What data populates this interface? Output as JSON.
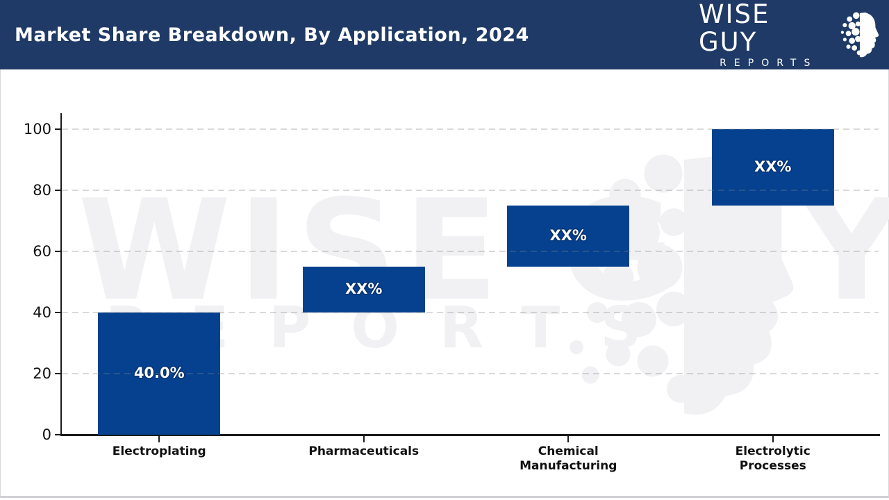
{
  "header": {
    "title": "Market Share Breakdown, By Application, 2024",
    "logo": {
      "line1": "WISE GUY",
      "line2": "REPORTS"
    }
  },
  "watermark": {
    "line1": "WISE GUY",
    "line2": "REPORTS"
  },
  "colors": {
    "header_bg": "#1f3a66",
    "bar": "#05418f",
    "axis": "#1a1a1a",
    "grid": "rgba(130,130,130,0.30)",
    "bar_label": "#ffffff",
    "watermark": "#f1f1f3",
    "panel_border": "#d8d8dc"
  },
  "chart_data": {
    "type": "bar",
    "variant": "waterfall",
    "title": "Market Share Breakdown, By Application, 2024",
    "categories": [
      "Electroplating",
      "Pharmaceuticals",
      "Chemical Manufacturing",
      "Electrolytic Processes"
    ],
    "category_lines": [
      [
        "Electroplating"
      ],
      [
        "Pharmaceuticals"
      ],
      [
        "Chemical",
        "Manufacturing"
      ],
      [
        "Electrolytic",
        "Processes"
      ]
    ],
    "segments": [
      {
        "category": "Electroplating",
        "from": 0,
        "to": 40,
        "size": 40,
        "label": "40.0%"
      },
      {
        "category": "Pharmaceuticals",
        "from": 40,
        "to": 55,
        "size": 15,
        "label": "XX%"
      },
      {
        "category": "Chemical Manufacturing",
        "from": 55,
        "to": 75,
        "size": 20,
        "label": "XX%"
      },
      {
        "category": "Electrolytic Processes",
        "from": 75,
        "to": 100,
        "size": 25,
        "label": "XX%"
      }
    ],
    "xlabel": "",
    "ylabel": "",
    "yticks": [
      0,
      20,
      40,
      60,
      80,
      100
    ],
    "ylim": [
      0,
      105
    ],
    "grid": "horizontal-dashed-over-bars",
    "legend": "none"
  }
}
